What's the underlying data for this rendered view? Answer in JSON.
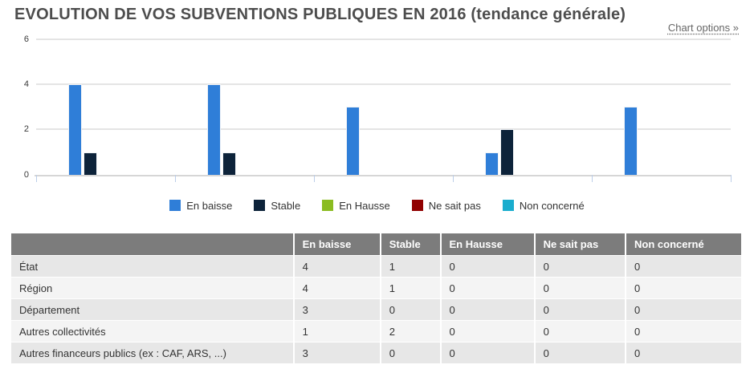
{
  "title": "EVOLUTION DE VOS SUBVENTIONS PUBLIQUES EN 2016 (tendance générale)",
  "chart_options_label": "Chart options »",
  "chart_data": {
    "type": "bar",
    "title": "EVOLUTION DE VOS SUBVENTIONS PUBLIQUES EN 2016 (tendance générale)",
    "categories": [
      "État",
      "Région",
      "Département",
      "Autres collectivités",
      "Autres financeurs publics (ex : CAF, ARS, ...)"
    ],
    "series": [
      {
        "name": "En baisse",
        "color": "#2f7ed8",
        "values": [
          4,
          4,
          3,
          1,
          3
        ]
      },
      {
        "name": "Stable",
        "color": "#0d233a",
        "values": [
          1,
          1,
          0,
          2,
          0
        ]
      },
      {
        "name": "En Hausse",
        "color": "#8bbc21",
        "values": [
          0,
          0,
          0,
          0,
          0
        ]
      },
      {
        "name": "Ne sait pas",
        "color": "#910000",
        "values": [
          0,
          0,
          0,
          0,
          0
        ]
      },
      {
        "name": "Non concerné",
        "color": "#1aadce",
        "values": [
          0,
          0,
          0,
          0,
          0
        ]
      }
    ],
    "xlabel": "",
    "ylabel": "",
    "ylim": [
      0,
      6
    ],
    "yticks": [
      0,
      2,
      4,
      6
    ],
    "grid": true,
    "x_axis_category_labels_visible": false,
    "legend_position": "bottom"
  },
  "table": {
    "headers": [
      "",
      "En baisse",
      "Stable",
      "En Hausse",
      "Ne sait pas",
      "Non concerné"
    ],
    "rows": [
      {
        "label": "État",
        "values": [
          4,
          1,
          0,
          0,
          0
        ]
      },
      {
        "label": "Région",
        "values": [
          4,
          1,
          0,
          0,
          0
        ]
      },
      {
        "label": "Département",
        "values": [
          3,
          0,
          0,
          0,
          0
        ]
      },
      {
        "label": "Autres collectivités",
        "values": [
          1,
          2,
          0,
          0,
          0
        ]
      },
      {
        "label": "Autres financeurs publics (ex : CAF, ARS, ...)",
        "values": [
          3,
          0,
          0,
          0,
          0
        ]
      }
    ]
  },
  "colors": {
    "title_text": "#4d4d4d",
    "link_text": "#666666",
    "table_header_bg": "#7c7c7c",
    "table_row_odd_bg": "#e7e7e7",
    "table_row_even_bg": "#f4f4f4",
    "gridline": "#e4e4e4",
    "axis_tick": "#bccee8"
  }
}
